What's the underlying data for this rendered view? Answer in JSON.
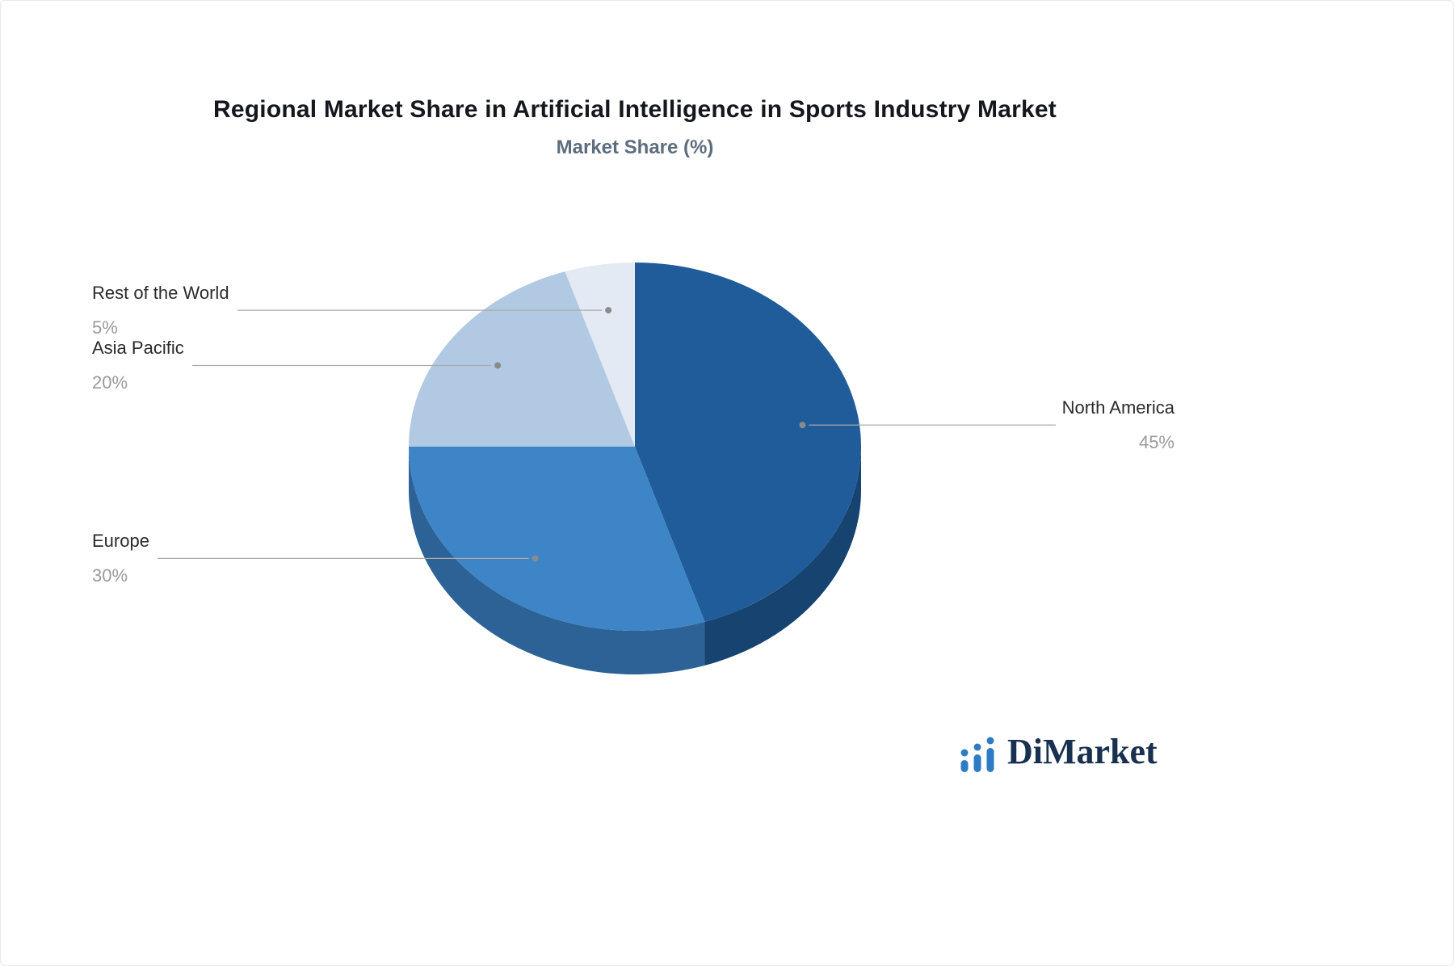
{
  "page": {
    "background": "#ffffff",
    "border_color": "#e9e9e9"
  },
  "chart_data": {
    "type": "pie",
    "title": "Regional Market Share in Artificial Intelligence in Sports Industry Market",
    "subtitle": "Market Share (%)",
    "unit": "%",
    "start_angle_deg": 0,
    "direction": "clockwise",
    "style": "3d-pie",
    "legend_position": "none",
    "slices": [
      {
        "label": "North America",
        "value": 45,
        "color": "#1f5c99",
        "side_color": "#16436f",
        "label_side": "right"
      },
      {
        "label": "Europe",
        "value": 30,
        "color": "#3d85c6",
        "side_color": "#2c6296",
        "label_side": "left"
      },
      {
        "label": "Asia Pacific",
        "value": 20,
        "color": "#b1c9e2",
        "side_color": "#8aa6c4",
        "label_side": "left"
      },
      {
        "label": "Rest of the World",
        "value": 5,
        "color": "#e3eaf4",
        "side_color": "#bac7d9",
        "label_side": "left"
      }
    ],
    "label_name_color": "#2b2b2b",
    "label_value_color": "#9a9a9a",
    "leader_line_color": "#aaaaaa"
  },
  "brand": {
    "name": "DiMarket",
    "text_color": "#17314f",
    "icon_color": "#2e7cc3"
  }
}
